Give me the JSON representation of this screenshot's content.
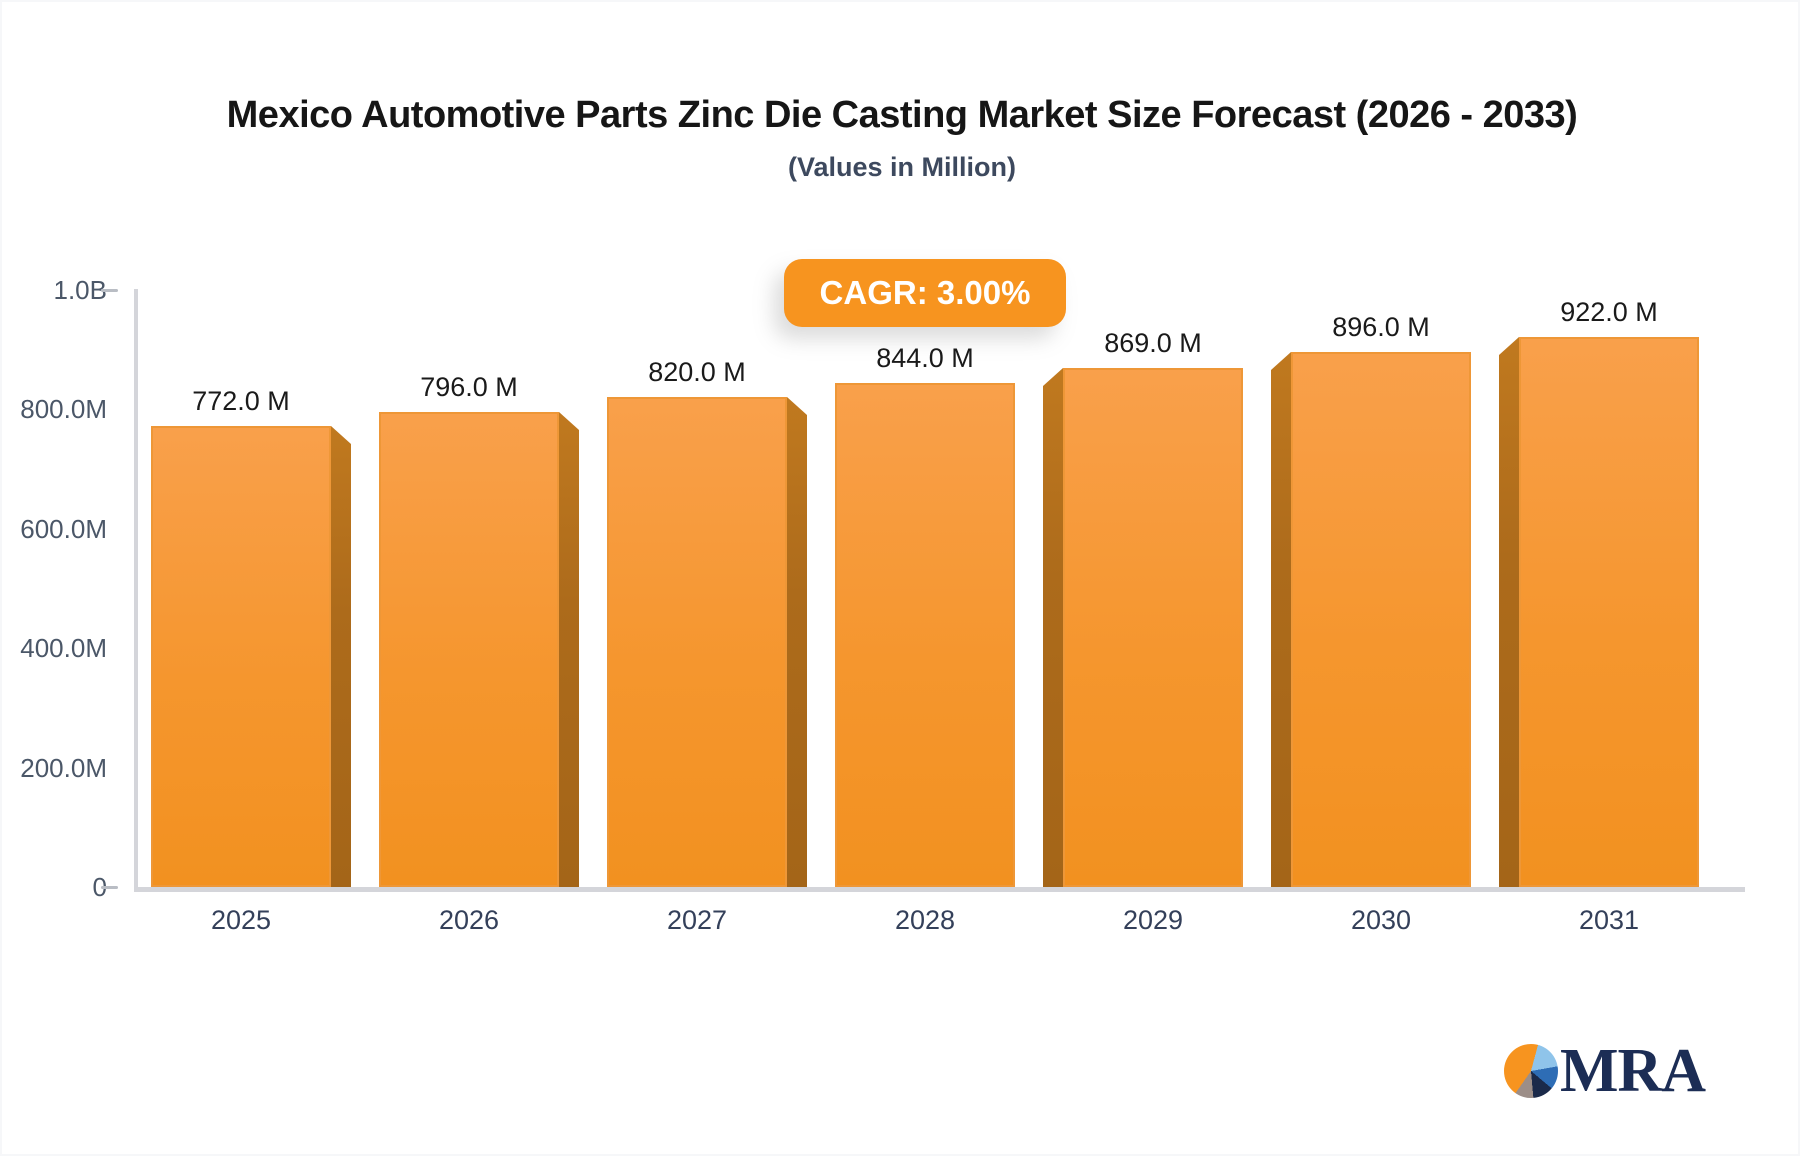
{
  "chart_data": {
    "type": "bar",
    "title": "Mexico Automotive Parts Zinc Die Casting Market Size Forecast (2026 - 2033)",
    "subtitle": "(Values in Million)",
    "annotation": "CAGR: 3.00%",
    "categories": [
      "2025",
      "2026",
      "2027",
      "2028",
      "2029",
      "2030",
      "2031"
    ],
    "values": [
      772,
      796,
      820,
      844,
      869,
      896,
      922
    ],
    "value_labels": [
      "772.0 M",
      "796.0 M",
      "820.0 M",
      "844.0 M",
      "869.0 M",
      "896.0 M",
      "922.0 M"
    ],
    "unit": "Million",
    "ylim": [
      0,
      1000
    ],
    "yticks": [
      {
        "v": 0,
        "label": "0"
      },
      {
        "v": 200,
        "label": "200.0M"
      },
      {
        "v": 400,
        "label": "400.0M"
      },
      {
        "v": 600,
        "label": "600.0M"
      },
      {
        "v": 800,
        "label": "800.0M"
      },
      {
        "v": 1000,
        "label": "1.0B"
      }
    ],
    "grid": false,
    "legend": false,
    "bar_color": "#f7941f",
    "bar_side_color": "#ad6b1b",
    "accent_color": "#f7941f"
  },
  "logo": {
    "text": "MRA"
  }
}
